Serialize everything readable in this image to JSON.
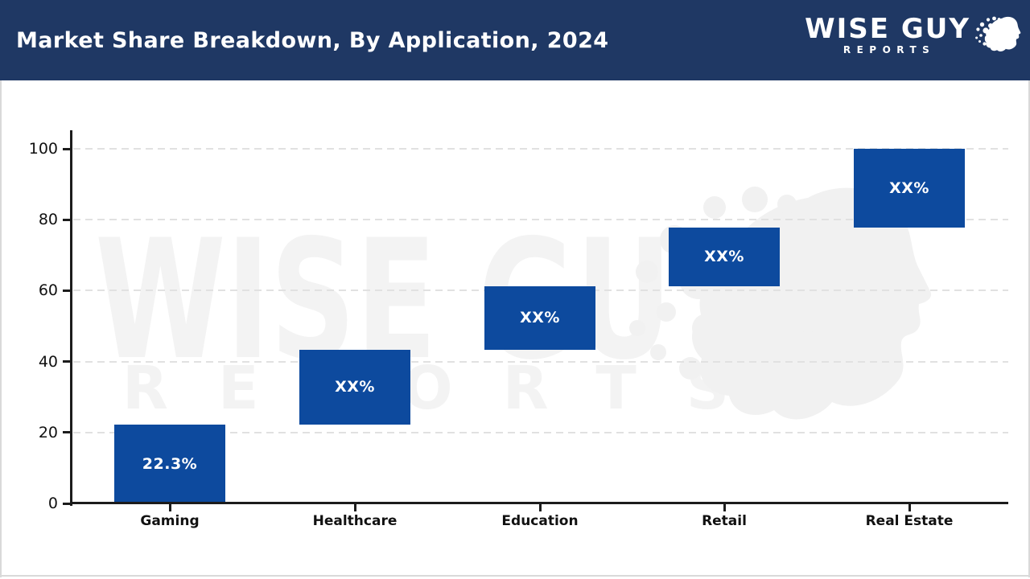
{
  "header": {
    "title": "Market Share Breakdown, By Application, 2024",
    "logo": {
      "line1": "WISE GUY",
      "line2": "REPORTS"
    }
  },
  "watermark": {
    "line1": "WISE GUY",
    "line2": "REPORTS"
  },
  "colors": {
    "header_bg": "#1f3864",
    "bar": "#0d4a9e",
    "grid": "#e1e1e1",
    "axis": "#1c1c1c",
    "watermark": "#f3f3f3",
    "bar_label": "#ffffff",
    "title_text": "#ffffff"
  },
  "chart_data": {
    "type": "bar",
    "subtype": "waterfall",
    "title": "Market Share Breakdown, By Application, 2024",
    "categories": [
      "Gaming",
      "Healthcare",
      "Education",
      "Retail",
      "Real Estate"
    ],
    "bars": [
      {
        "category": "Gaming",
        "start": 0,
        "end": 22.3,
        "label": "22.3%"
      },
      {
        "category": "Healthcare",
        "start": 22.3,
        "end": 43.3,
        "label": "XX%"
      },
      {
        "category": "Education",
        "start": 43.3,
        "end": 61.3,
        "label": "XX%"
      },
      {
        "category": "Retail",
        "start": 61.3,
        "end": 77.8,
        "label": "XX%"
      },
      {
        "category": "Real Estate",
        "start": 77.8,
        "end": 100,
        "label": "XX%"
      }
    ],
    "xlabel": "",
    "ylabel": "",
    "y_ticks": [
      0,
      20,
      40,
      60,
      80,
      100
    ],
    "ylim": [
      0,
      105
    ],
    "grid": "dashed-horizontal-behind-bars",
    "legend": null
  }
}
